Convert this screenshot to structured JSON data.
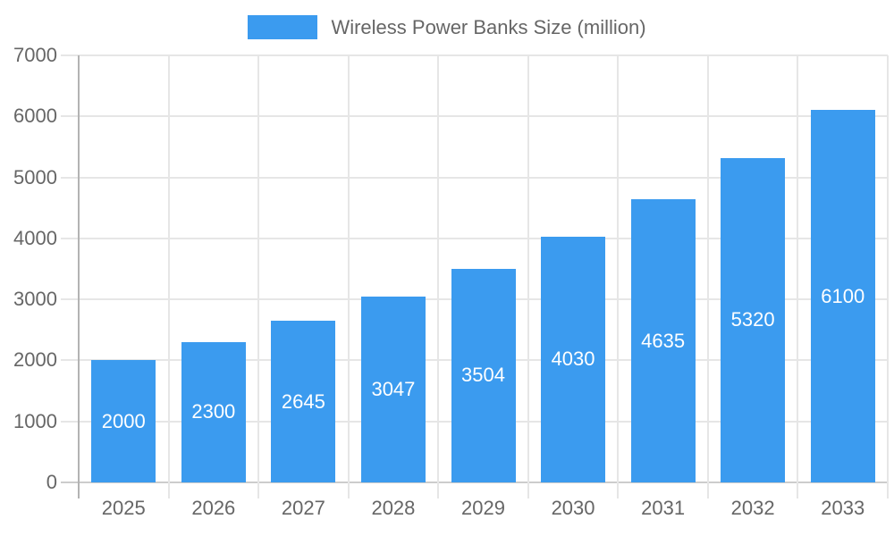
{
  "chart_data": {
    "type": "bar",
    "title": "Wireless Power Banks Size (million)",
    "legend": {
      "position": "top",
      "label": "Wireless Power Banks Size (million)"
    },
    "categories": [
      "2025",
      "2026",
      "2027",
      "2028",
      "2029",
      "2030",
      "2031",
      "2032",
      "2033"
    ],
    "series": [
      {
        "name": "Wireless Power Banks Size (million)",
        "values": [
          2000,
          2300,
          2645,
          3047,
          3504,
          4030,
          4635,
          5320,
          6100
        ]
      }
    ],
    "data_labels": {
      "position": "center",
      "color": "#ffffff"
    },
    "xlabel": "",
    "ylabel": "",
    "ylim": [
      0,
      7000
    ],
    "yticks": [
      0,
      1000,
      2000,
      3000,
      4000,
      5000,
      6000,
      7000
    ],
    "grid": true,
    "colors": {
      "bar": "#3B9BEF",
      "axis_text": "#666666",
      "grid": "#e6e6e6",
      "axis_line": "#b3b3b3",
      "zero_line": "#cccccc",
      "background": "#ffffff"
    }
  }
}
